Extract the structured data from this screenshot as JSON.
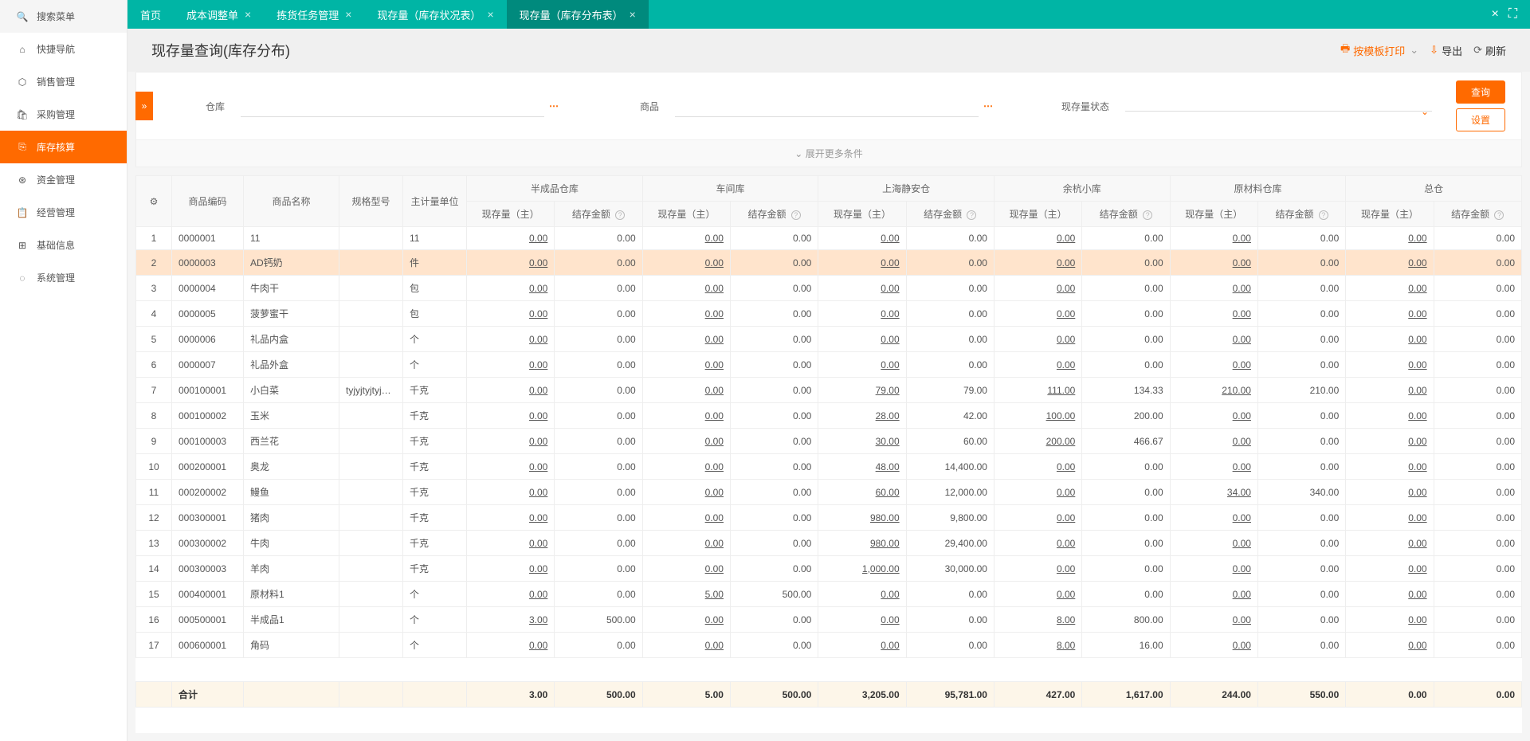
{
  "sidebar": {
    "items": [
      {
        "icon": "🔍",
        "label": "搜索菜单",
        "name": "search-menu"
      },
      {
        "icon": "⌂",
        "label": "快捷导航",
        "name": "quick-nav"
      },
      {
        "icon": "⬡",
        "label": "销售管理",
        "name": "sales-mgmt"
      },
      {
        "icon": "🛍",
        "label": "采购管理",
        "name": "purchase-mgmt"
      },
      {
        "icon": "⎘",
        "label": "库存核算",
        "name": "inventory-calc",
        "active": true
      },
      {
        "icon": "⊛",
        "label": "资金管理",
        "name": "fund-mgmt"
      },
      {
        "icon": "📋",
        "label": "经营管理",
        "name": "ops-mgmt"
      },
      {
        "icon": "⊞",
        "label": "基础信息",
        "name": "base-info"
      },
      {
        "icon": "◌",
        "label": "系统管理",
        "name": "system-mgmt"
      }
    ]
  },
  "tabs": [
    {
      "label": "首页",
      "closable": false
    },
    {
      "label": "成本调整单",
      "closable": true
    },
    {
      "label": "拣货任务管理",
      "closable": true
    },
    {
      "label": "现存量（库存状况表）",
      "closable": true
    },
    {
      "label": "现存量（库存分布表）",
      "closable": true,
      "active": true
    }
  ],
  "page": {
    "title": "现存量查询(库存分布)",
    "actions": {
      "print": "按模板打印",
      "export": "导出",
      "refresh": "刷新"
    }
  },
  "filters": {
    "warehouse_label": "仓库",
    "product_label": "商品",
    "status_label": "现存量状态",
    "query_btn": "查询",
    "settings_btn": "设置",
    "expand_more": "展开更多条件"
  },
  "table": {
    "columns": {
      "idx_gear": "⚙",
      "code": "商品编码",
      "name": "商品名称",
      "spec": "规格型号",
      "unit": "主计量单位",
      "warehouses": [
        "半成品仓库",
        "车间库",
        "上海静安仓",
        "余杭小库",
        "原材料仓库",
        "总仓"
      ],
      "sub_qty": "现存量（主）",
      "sub_amt": "结存金额"
    },
    "rows": [
      {
        "idx": 1,
        "code": "0000001",
        "name": "11",
        "spec": "",
        "unit": "11",
        "vals": [
          [
            "0.00",
            "0.00"
          ],
          [
            "0.00",
            "0.00"
          ],
          [
            "0.00",
            "0.00"
          ],
          [
            "0.00",
            "0.00"
          ],
          [
            "0.00",
            "0.00"
          ],
          [
            "0.00",
            "0.00"
          ]
        ]
      },
      {
        "idx": 2,
        "code": "0000003",
        "name": "AD钙奶",
        "spec": "",
        "unit": "件",
        "highlight": true,
        "vals": [
          [
            "0.00",
            "0.00"
          ],
          [
            "0.00",
            "0.00"
          ],
          [
            "0.00",
            "0.00"
          ],
          [
            "0.00",
            "0.00"
          ],
          [
            "0.00",
            "0.00"
          ],
          [
            "0.00",
            "0.00"
          ]
        ]
      },
      {
        "idx": 3,
        "code": "0000004",
        "name": "牛肉干",
        "spec": "",
        "unit": "包",
        "vals": [
          [
            "0.00",
            "0.00"
          ],
          [
            "0.00",
            "0.00"
          ],
          [
            "0.00",
            "0.00"
          ],
          [
            "0.00",
            "0.00"
          ],
          [
            "0.00",
            "0.00"
          ],
          [
            "0.00",
            "0.00"
          ]
        ]
      },
      {
        "idx": 4,
        "code": "0000005",
        "name": "菠萝蜜干",
        "spec": "",
        "unit": "包",
        "vals": [
          [
            "0.00",
            "0.00"
          ],
          [
            "0.00",
            "0.00"
          ],
          [
            "0.00",
            "0.00"
          ],
          [
            "0.00",
            "0.00"
          ],
          [
            "0.00",
            "0.00"
          ],
          [
            "0.00",
            "0.00"
          ]
        ]
      },
      {
        "idx": 5,
        "code": "0000006",
        "name": "礼品内盒",
        "spec": "",
        "unit": "个",
        "vals": [
          [
            "0.00",
            "0.00"
          ],
          [
            "0.00",
            "0.00"
          ],
          [
            "0.00",
            "0.00"
          ],
          [
            "0.00",
            "0.00"
          ],
          [
            "0.00",
            "0.00"
          ],
          [
            "0.00",
            "0.00"
          ]
        ]
      },
      {
        "idx": 6,
        "code": "0000007",
        "name": "礼品外盒",
        "spec": "",
        "unit": "个",
        "vals": [
          [
            "0.00",
            "0.00"
          ],
          [
            "0.00",
            "0.00"
          ],
          [
            "0.00",
            "0.00"
          ],
          [
            "0.00",
            "0.00"
          ],
          [
            "0.00",
            "0.00"
          ],
          [
            "0.00",
            "0.00"
          ]
        ]
      },
      {
        "idx": 7,
        "code": "000100001",
        "name": "小白菜",
        "spec": "tyjyjtyjtyjdf...",
        "unit": "千克",
        "vals": [
          [
            "0.00",
            "0.00"
          ],
          [
            "0.00",
            "0.00"
          ],
          [
            "79.00",
            "79.00"
          ],
          [
            "111.00",
            "134.33"
          ],
          [
            "210.00",
            "210.00"
          ],
          [
            "0.00",
            "0.00"
          ]
        ]
      },
      {
        "idx": 8,
        "code": "000100002",
        "name": "玉米",
        "spec": "",
        "unit": "千克",
        "vals": [
          [
            "0.00",
            "0.00"
          ],
          [
            "0.00",
            "0.00"
          ],
          [
            "28.00",
            "42.00"
          ],
          [
            "100.00",
            "200.00"
          ],
          [
            "0.00",
            "0.00"
          ],
          [
            "0.00",
            "0.00"
          ]
        ]
      },
      {
        "idx": 9,
        "code": "000100003",
        "name": "西兰花",
        "spec": "",
        "unit": "千克",
        "vals": [
          [
            "0.00",
            "0.00"
          ],
          [
            "0.00",
            "0.00"
          ],
          [
            "30.00",
            "60.00"
          ],
          [
            "200.00",
            "466.67"
          ],
          [
            "0.00",
            "0.00"
          ],
          [
            "0.00",
            "0.00"
          ]
        ]
      },
      {
        "idx": 10,
        "code": "000200001",
        "name": "奥龙",
        "spec": "",
        "unit": "千克",
        "vals": [
          [
            "0.00",
            "0.00"
          ],
          [
            "0.00",
            "0.00"
          ],
          [
            "48.00",
            "14,400.00"
          ],
          [
            "0.00",
            "0.00"
          ],
          [
            "0.00",
            "0.00"
          ],
          [
            "0.00",
            "0.00"
          ]
        ]
      },
      {
        "idx": 11,
        "code": "000200002",
        "name": "鳗鱼",
        "spec": "",
        "unit": "千克",
        "vals": [
          [
            "0.00",
            "0.00"
          ],
          [
            "0.00",
            "0.00"
          ],
          [
            "60.00",
            "12,000.00"
          ],
          [
            "0.00",
            "0.00"
          ],
          [
            "34.00",
            "340.00"
          ],
          [
            "0.00",
            "0.00"
          ]
        ]
      },
      {
        "idx": 12,
        "code": "000300001",
        "name": "猪肉",
        "spec": "",
        "unit": "千克",
        "vals": [
          [
            "0.00",
            "0.00"
          ],
          [
            "0.00",
            "0.00"
          ],
          [
            "980.00",
            "9,800.00"
          ],
          [
            "0.00",
            "0.00"
          ],
          [
            "0.00",
            "0.00"
          ],
          [
            "0.00",
            "0.00"
          ]
        ]
      },
      {
        "idx": 13,
        "code": "000300002",
        "name": "牛肉",
        "spec": "",
        "unit": "千克",
        "vals": [
          [
            "0.00",
            "0.00"
          ],
          [
            "0.00",
            "0.00"
          ],
          [
            "980.00",
            "29,400.00"
          ],
          [
            "0.00",
            "0.00"
          ],
          [
            "0.00",
            "0.00"
          ],
          [
            "0.00",
            "0.00"
          ]
        ]
      },
      {
        "idx": 14,
        "code": "000300003",
        "name": "羊肉",
        "spec": "",
        "unit": "千克",
        "vals": [
          [
            "0.00",
            "0.00"
          ],
          [
            "0.00",
            "0.00"
          ],
          [
            "1,000.00",
            "30,000.00"
          ],
          [
            "0.00",
            "0.00"
          ],
          [
            "0.00",
            "0.00"
          ],
          [
            "0.00",
            "0.00"
          ]
        ]
      },
      {
        "idx": 15,
        "code": "000400001",
        "name": "原材料1",
        "spec": "",
        "unit": "个",
        "vals": [
          [
            "0.00",
            "0.00"
          ],
          [
            "5.00",
            "500.00"
          ],
          [
            "0.00",
            "0.00"
          ],
          [
            "0.00",
            "0.00"
          ],
          [
            "0.00",
            "0.00"
          ],
          [
            "0.00",
            "0.00"
          ]
        ]
      },
      {
        "idx": 16,
        "code": "000500001",
        "name": "半成品1",
        "spec": "",
        "unit": "个",
        "vals": [
          [
            "3.00",
            "500.00"
          ],
          [
            "0.00",
            "0.00"
          ],
          [
            "0.00",
            "0.00"
          ],
          [
            "8.00",
            "800.00"
          ],
          [
            "0.00",
            "0.00"
          ],
          [
            "0.00",
            "0.00"
          ]
        ]
      },
      {
        "idx": 17,
        "code": "000600001",
        "name": "角码",
        "spec": "",
        "unit": "个",
        "vals": [
          [
            "0.00",
            "0.00"
          ],
          [
            "0.00",
            "0.00"
          ],
          [
            "0.00",
            "0.00"
          ],
          [
            "8.00",
            "16.00"
          ],
          [
            "0.00",
            "0.00"
          ],
          [
            "0.00",
            "0.00"
          ]
        ]
      }
    ],
    "totals": {
      "label": "合计",
      "vals": [
        [
          "3.00",
          "500.00"
        ],
        [
          "5.00",
          "500.00"
        ],
        [
          "3,205.00",
          "95,781.00"
        ],
        [
          "427.00",
          "1,617.00"
        ],
        [
          "244.00",
          "550.00"
        ],
        [
          "0.00",
          "0.00"
        ]
      ]
    }
  }
}
